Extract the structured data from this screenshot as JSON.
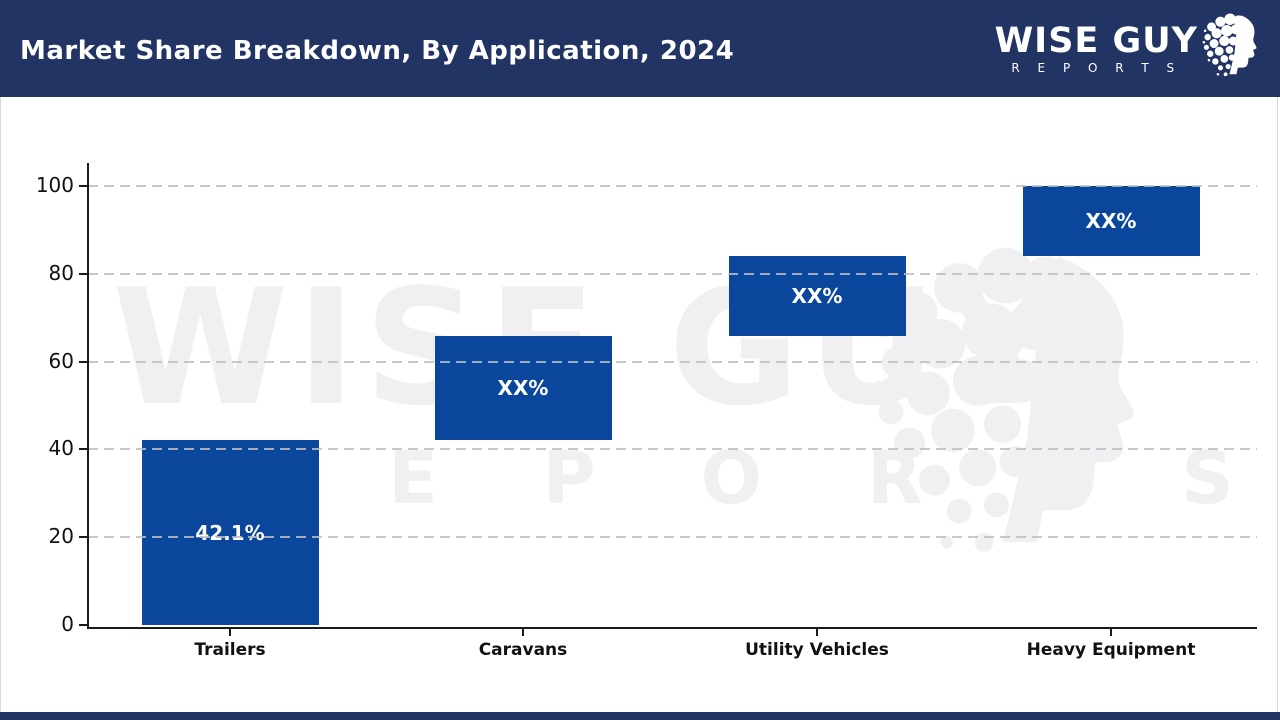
{
  "header": {
    "title": "Market Share Breakdown, By Application, 2024",
    "logo": {
      "line1": "WISE GUY",
      "line2": "R E P O R T S"
    }
  },
  "watermark": {
    "line1": "WISE GUY",
    "line2": "R E P O R T S"
  },
  "chart_data": {
    "type": "bar",
    "subtype": "waterfall",
    "title": "Market Share Breakdown, By Application, 2024",
    "categories": [
      "Trailers",
      "Caravans",
      "Utility Vehicles",
      "Heavy Equipment"
    ],
    "segments": [
      {
        "category": "Trailers",
        "start": 0,
        "end": 42.1,
        "label": "42.1%"
      },
      {
        "category": "Caravans",
        "start": 42.1,
        "end": 65.8,
        "label": "XX%"
      },
      {
        "category": "Utility Vehicles",
        "start": 65.8,
        "end": 84.0,
        "label": "XX%"
      },
      {
        "category": "Heavy Equipment",
        "start": 84.0,
        "end": 100.0,
        "label": "XX%"
      }
    ],
    "yticks": [
      0,
      20,
      40,
      60,
      80,
      100
    ],
    "ylim": [
      0,
      105
    ],
    "xlabel": "",
    "ylabel": "",
    "grid": "horizontal-dashed",
    "legend": "none",
    "bar_color": "#0a479c",
    "value_label_color": "#ffffff"
  },
  "colors": {
    "header_bg": "#213463",
    "footer_bg": "#213463",
    "bar": "#0a479c",
    "watermark": "#f0f0f2",
    "gridline": "#c8c8cd",
    "axis": "#1a1a1a"
  }
}
